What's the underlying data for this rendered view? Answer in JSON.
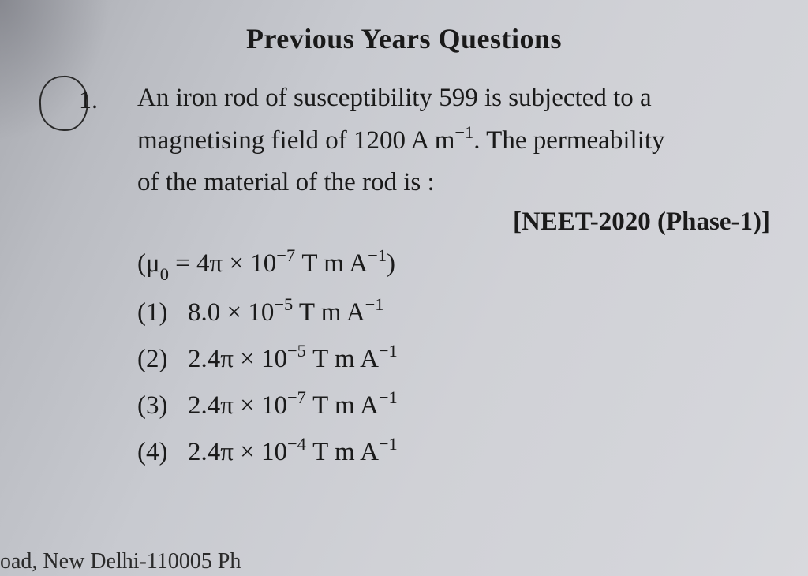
{
  "header": {
    "title": "Previous Years Questions"
  },
  "question": {
    "number": "1.",
    "text_line1": "An iron rod of susceptibility 599 is subjected to a",
    "text_line2": "magnetising field of 1200 A m",
    "text_line2_exp": "−1",
    "text_line2_after": ". The permeability",
    "text_line3": "of the material of the rod is :",
    "exam_tag": "[NEET-2020 (Phase-1)]",
    "given_prefix": "(μ",
    "given_sub": "0",
    "given_mid": " = 4π × 10",
    "given_exp": "−7",
    "given_unit": " T m A",
    "given_unit_exp": "−1",
    "given_suffix": ")"
  },
  "options": [
    {
      "num": "(1)",
      "val": "8.0 × 10",
      "exp": "−5",
      "unit": " T m A",
      "unit_exp": "−1"
    },
    {
      "num": "(2)",
      "val": "2.4π × 10",
      "exp": "−5",
      "unit": " T m A",
      "unit_exp": "−1"
    },
    {
      "num": "(3)",
      "val": "2.4π × 10",
      "exp": "−7",
      "unit": " T m A",
      "unit_exp": "−1"
    },
    {
      "num": "(4)",
      "val": "2.4π × 10",
      "exp": "−4",
      "unit": " T m A",
      "unit_exp": "−1"
    }
  ],
  "footer": {
    "text": "oad, New Delhi-110005  Ph"
  }
}
